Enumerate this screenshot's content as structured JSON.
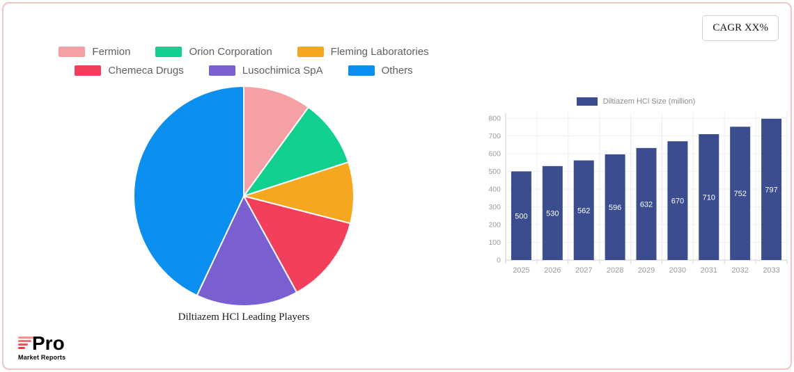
{
  "cagr": {
    "label": "CAGR XX%"
  },
  "logo": {
    "title": "Pro",
    "subtitle": "Market Reports"
  },
  "chart_data": [
    {
      "type": "pie",
      "title": "Diltiazem HCl Leading Players",
      "labels": [
        "Fermion",
        "Orion Corporation",
        "Fleming Laboratories",
        "Chemeca Drugs",
        "Lusochimica SpA",
        "Others"
      ],
      "values": [
        10,
        10,
        9,
        13,
        15,
        43
      ],
      "colors": [
        "#f5a0a5",
        "#12d18e",
        "#f5a81f",
        "#f2405c",
        "#7a5fd0",
        "#0a8ff0"
      ],
      "legend_position": "top",
      "start_angle_deg": 0,
      "direction": "clockwise"
    },
    {
      "type": "bar",
      "legend": "Diltiazem HCl Size (million)",
      "categories": [
        "2025",
        "2026",
        "2027",
        "2028",
        "2029",
        "2030",
        "2031",
        "2032",
        "2033"
      ],
      "values": [
        500,
        530,
        562,
        596,
        632,
        670,
        710,
        752,
        797
      ],
      "ylim": [
        0,
        800
      ],
      "ytick_step": 100,
      "bar_color": "#3c4d8f",
      "grid": true,
      "legend_position": "top"
    }
  ]
}
